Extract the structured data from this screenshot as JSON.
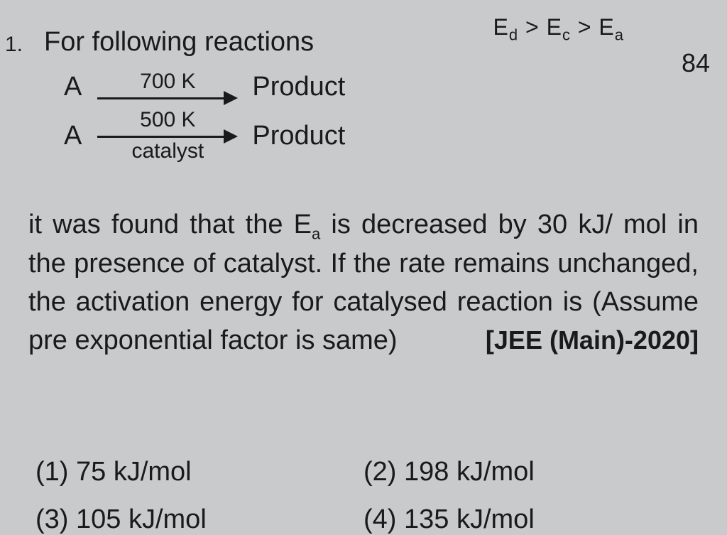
{
  "page": {
    "number": "84"
  },
  "top_fragment": {
    "raw": "E_d > E_c > E_a",
    "parts": [
      "E",
      "d",
      " > E",
      "c",
      " > E",
      "a"
    ]
  },
  "question_number": "1.",
  "title": "For following reactions",
  "reactions": [
    {
      "reactant": "A",
      "arrow_top": "700 K",
      "arrow_bottom": "",
      "product": "Product"
    },
    {
      "reactant": "A",
      "arrow_top": "500 K",
      "arrow_bottom": "catalyst",
      "product": "Product"
    }
  ],
  "body": {
    "line_pre_sub": "it was found that the E",
    "sub": "a",
    "line_post_sub": " is decreased by 30 kJ/ mol in the presence of catalyst. If the rate remains unchanged, the activation energy for catalysed reaction is (Assume pre exponential factor is same)",
    "reference": "[JEE (Main)-2020]"
  },
  "options": [
    {
      "n": "(1)",
      "text": "75 kJ/mol"
    },
    {
      "n": "(2)",
      "text": "198 kJ/mol"
    },
    {
      "n": "(3)",
      "text": "105 kJ/mol"
    },
    {
      "n": "(4)",
      "text": "135 kJ/mol"
    }
  ],
  "colors": {
    "background": "#c8cacb",
    "text": "#1a1a1a"
  }
}
